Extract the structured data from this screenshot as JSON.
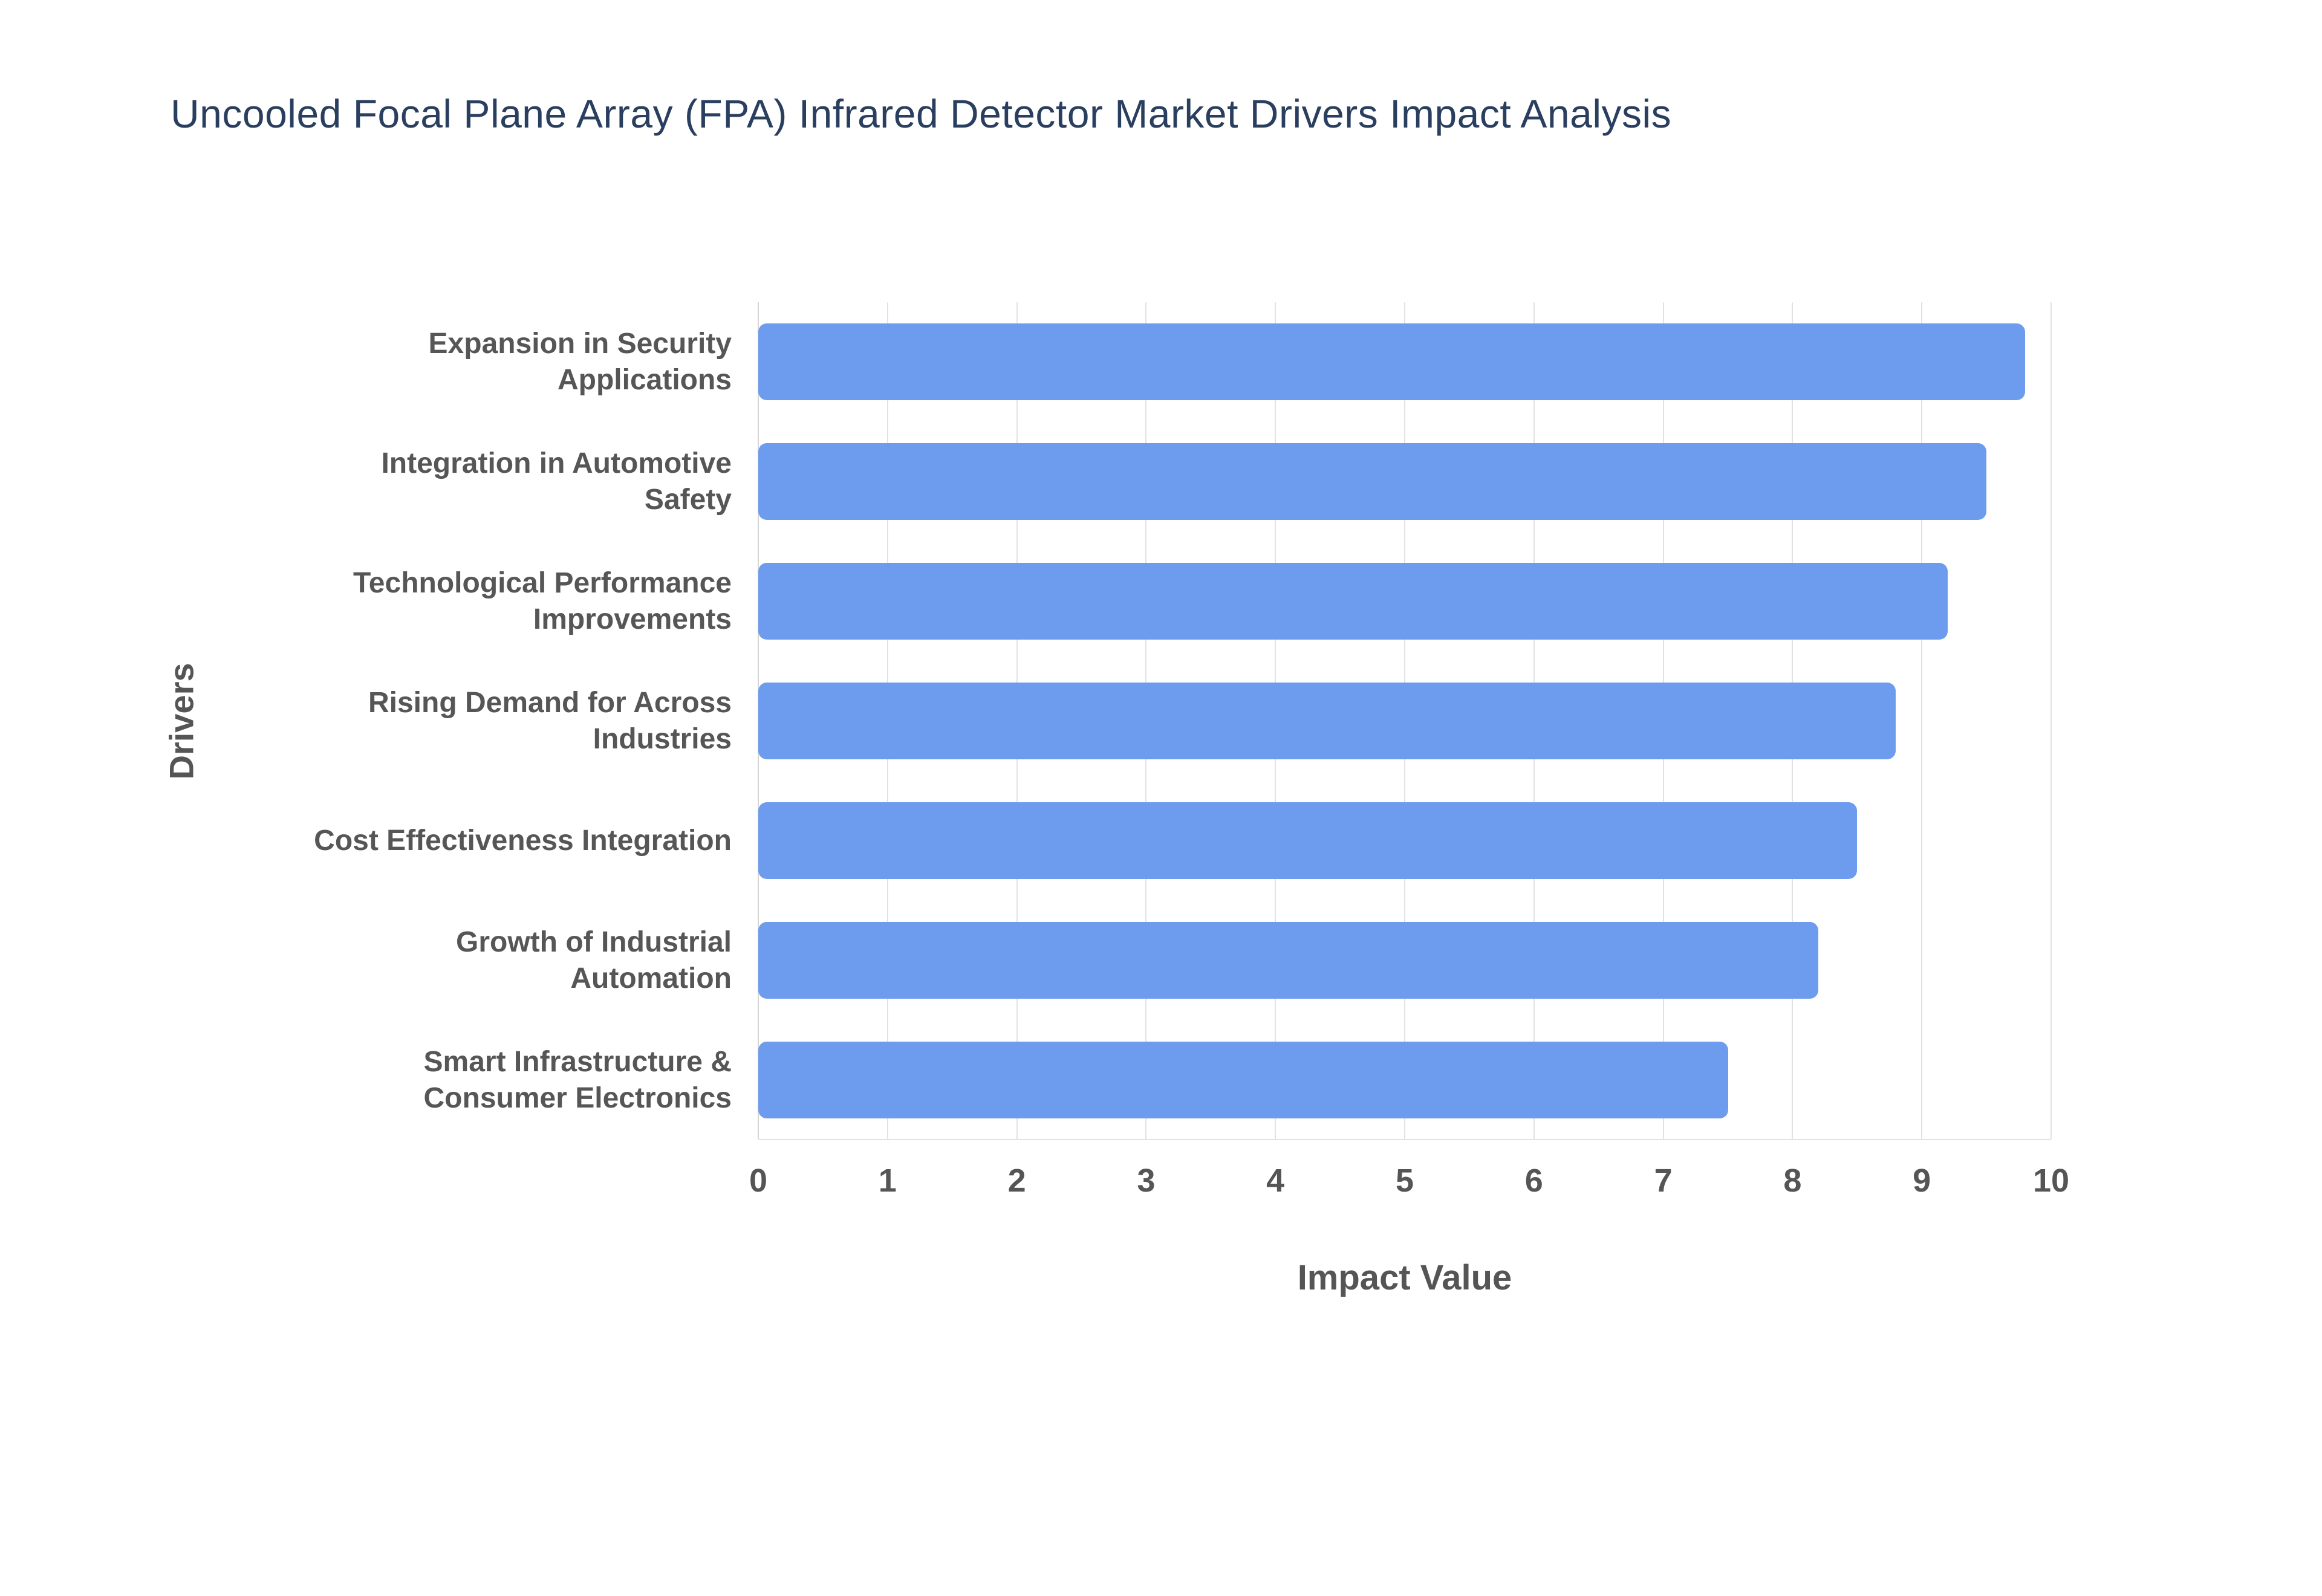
{
  "chart_data": {
    "type": "bar",
    "orientation": "horizontal",
    "title": "Uncooled Focal Plane Array (FPA) Infrared Detector Market Drivers Impact Analysis",
    "xlabel": "Impact Value",
    "ylabel": "Drivers",
    "categories": [
      "Expansion in Security Applications",
      "Integration in Automotive Safety",
      "Technological Performance Improvements",
      "Rising Demand for Across Industries",
      "Cost Effectiveness Integration",
      "Growth of Industrial Automation",
      "Smart Infrastructure & Consumer Electronics"
    ],
    "categories_wrapped": [
      "Expansion in Security\nApplications",
      "Integration in Automotive\nSafety",
      "Technological Performance\nImprovements",
      "Rising Demand for Across\nIndustries",
      "Cost Effectiveness Integration",
      "Growth of Industrial\nAutomation",
      "Smart Infrastructure &\nConsumer Electronics"
    ],
    "values": [
      9.8,
      9.5,
      9.2,
      8.8,
      8.5,
      8.2,
      7.5
    ],
    "xlim": [
      0,
      10
    ],
    "xticks": [
      0,
      1,
      2,
      3,
      4,
      5,
      6,
      7,
      8,
      9,
      10
    ],
    "grid": true,
    "legend": "none",
    "colors": {
      "bar": "#6d9cee",
      "grid": "#e2e2e2",
      "title": "#2a3f5f",
      "axis_text": "#555555",
      "background": "#ffffff"
    }
  }
}
